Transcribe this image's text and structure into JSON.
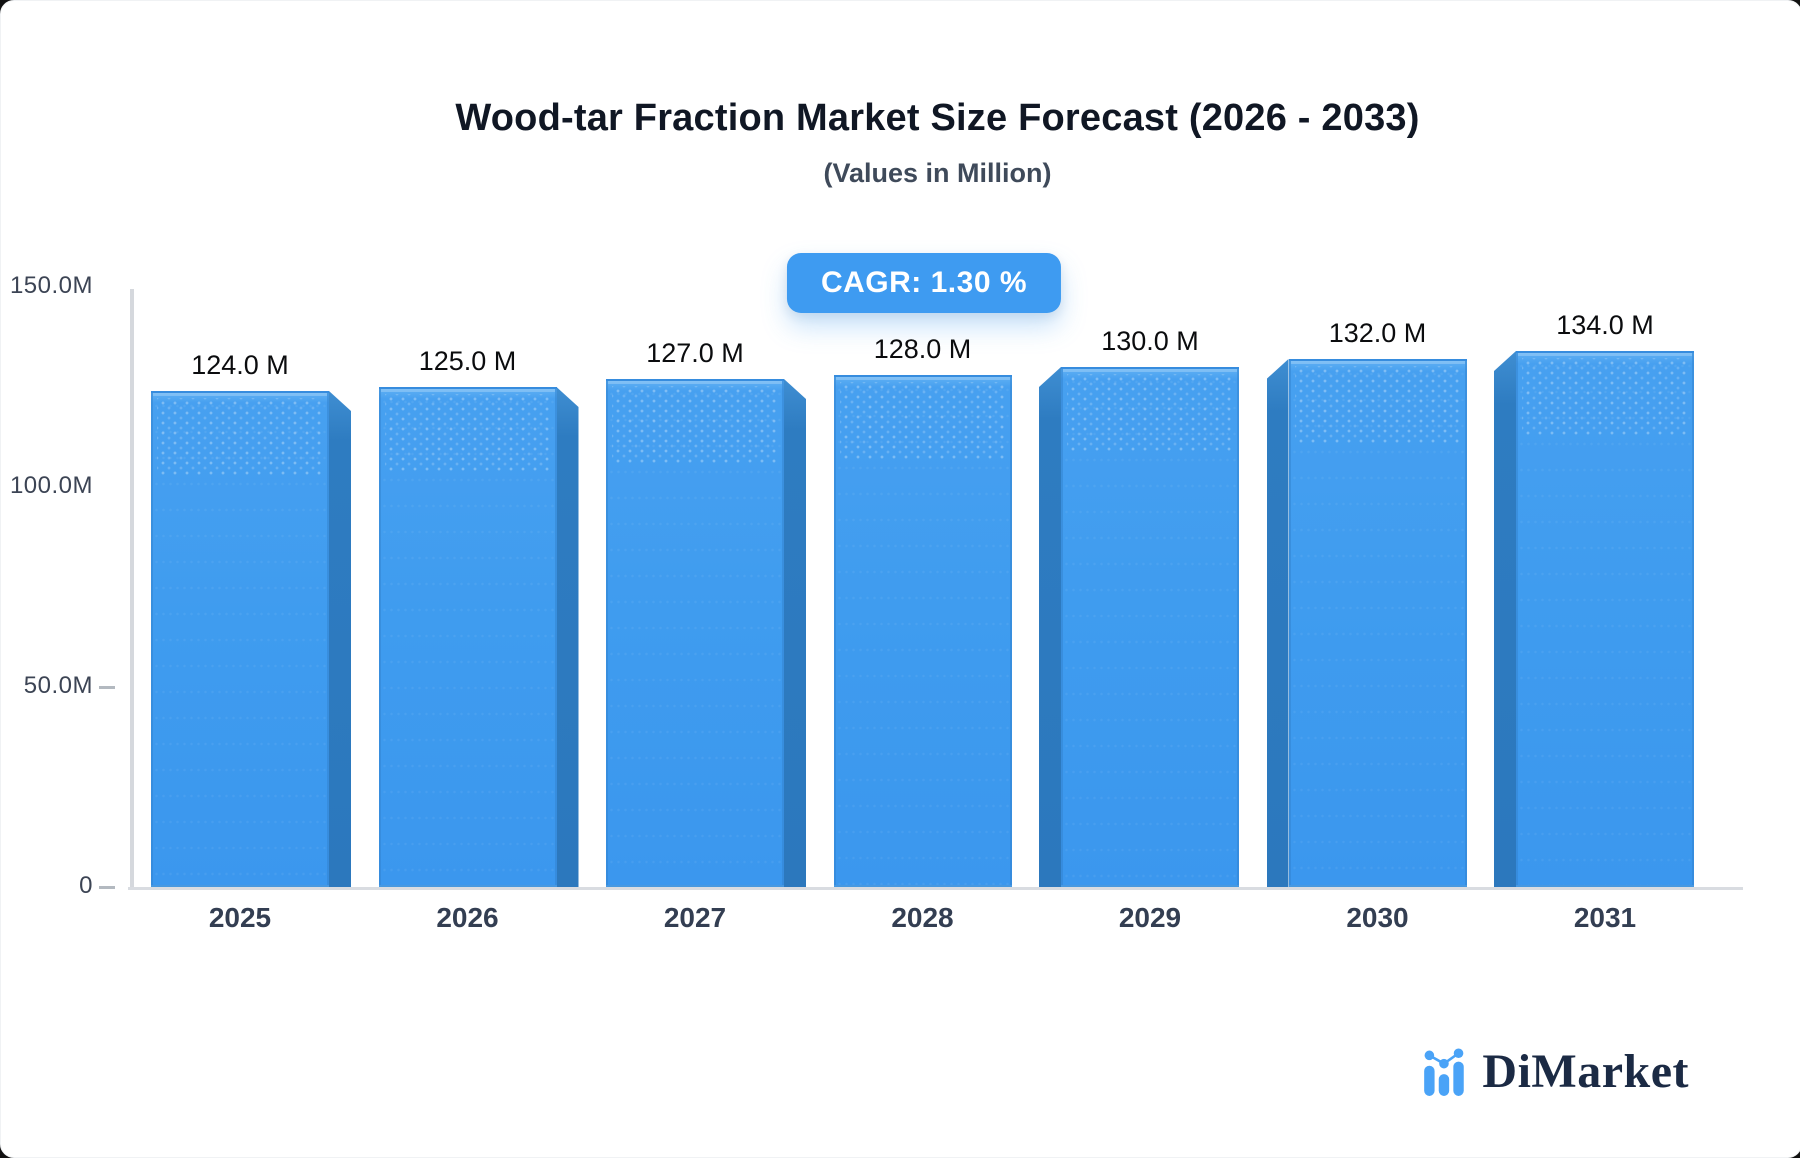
{
  "title": "Wood-tar Fraction Market Size Forecast (2026 - 2033)",
  "subtitle": "(Values in Million)",
  "badge": {
    "label": "CAGR: 1.30 %"
  },
  "watermark": {
    "text": "DiMarket",
    "icon": "mini-bar-chart-icon"
  },
  "colors": {
    "bar_face": "#3f9cef",
    "bar_side": "#2d7ac0",
    "badge_blue": "#3e9bf1",
    "axis_gray": "#d5d8dd",
    "logo_navy": "#1b2a44",
    "logo_blue": "#4aa3f7"
  },
  "chart_data": {
    "type": "bar",
    "title": "Wood-tar Fraction Market Size Forecast (2026 - 2033)",
    "subtitle": "(Values in Million)",
    "unit": "Million",
    "categories": [
      "2025",
      "2026",
      "2027",
      "2028",
      "2029",
      "2030",
      "2031"
    ],
    "values": [
      124,
      125,
      127,
      128,
      130,
      132,
      134
    ],
    "value_labels": [
      "124.0 M",
      "125.0 M",
      "127.0 M",
      "128.0 M",
      "130.0 M",
      "132.0 M",
      "134.0 M"
    ],
    "xlabel": "",
    "ylabel": "",
    "ylim": [
      0,
      150
    ],
    "grid": false,
    "legend": "none",
    "annotation": "CAGR: 1.30 %",
    "y_ticks": [
      {
        "label": "150.0M",
        "value": 150,
        "tick": false
      },
      {
        "label": "100.0M",
        "value": 100,
        "tick": false
      },
      {
        "label": "50.0M",
        "value": 50,
        "tick": true
      },
      {
        "label": "0",
        "value": 0,
        "tick": true
      }
    ]
  }
}
